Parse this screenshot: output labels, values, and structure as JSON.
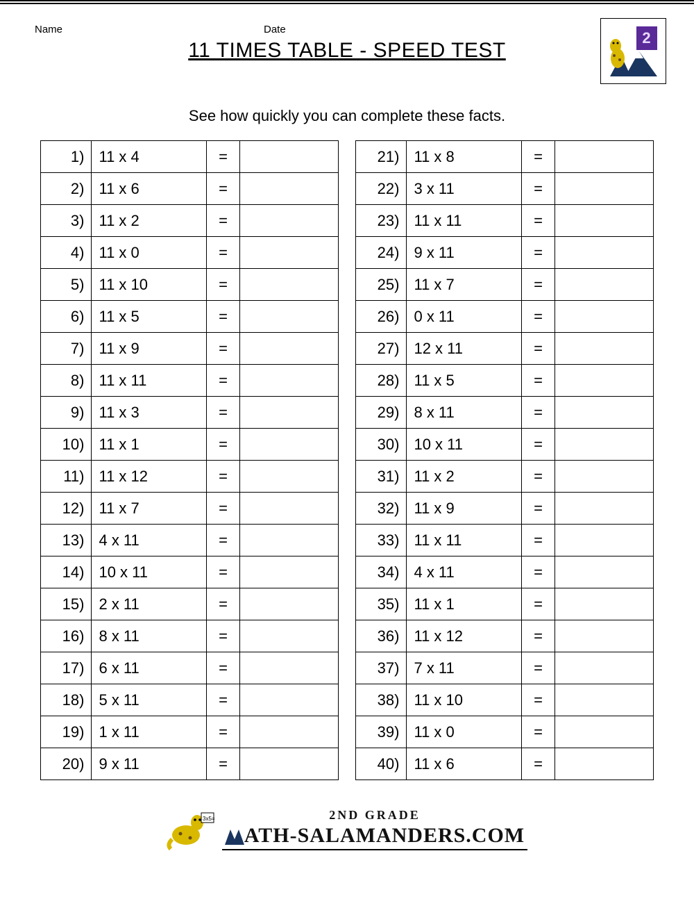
{
  "header": {
    "name_label": "Name",
    "date_label": "Date",
    "title": "11 TIMES TABLE - SPEED TEST",
    "subtitle": "See how quickly you can complete these facts.",
    "logo_number": "2"
  },
  "colors": {
    "border": "#000000",
    "background": "#ffffff",
    "logo_bg": "#5a2a99",
    "logo_text": "#e9d8ff",
    "salamander": "#d8b900"
  },
  "typography": {
    "title_fontsize": 30,
    "subtitle_fontsize": 22,
    "cell_fontsize": 22,
    "label_fontsize": 15
  },
  "equals_sign": "=",
  "left_column": [
    {
      "n": "1)",
      "expr": "11 x 4"
    },
    {
      "n": "2)",
      "expr": "11 x 6"
    },
    {
      "n": "3)",
      "expr": "11 x 2"
    },
    {
      "n": "4)",
      "expr": "11 x 0"
    },
    {
      "n": "5)",
      "expr": "11 x 10"
    },
    {
      "n": "6)",
      "expr": "11 x 5"
    },
    {
      "n": "7)",
      "expr": "11 x 9"
    },
    {
      "n": "8)",
      "expr": "11 x 11"
    },
    {
      "n": "9)",
      "expr": "11 x 3"
    },
    {
      "n": "10)",
      "expr": "11 x 1"
    },
    {
      "n": "11)",
      "expr": "11 x 12"
    },
    {
      "n": "12)",
      "expr": "11 x 7"
    },
    {
      "n": "13)",
      "expr": "4 x 11"
    },
    {
      "n": "14)",
      "expr": "10 x 11"
    },
    {
      "n": "15)",
      "expr": "2 x 11"
    },
    {
      "n": "16)",
      "expr": "8 x 11"
    },
    {
      "n": "17)",
      "expr": "6 x 11"
    },
    {
      "n": "18)",
      "expr": "5 x 11"
    },
    {
      "n": "19)",
      "expr": "1 x 11"
    },
    {
      "n": "20)",
      "expr": "9 x 11"
    }
  ],
  "right_column": [
    {
      "n": "21)",
      "expr": "11 x 8"
    },
    {
      "n": "22)",
      "expr": "3 x 11"
    },
    {
      "n": "23)",
      "expr": "11 x 11"
    },
    {
      "n": "24)",
      "expr": "9 x 11"
    },
    {
      "n": "25)",
      "expr": "11 x 7"
    },
    {
      "n": "26)",
      "expr": "0 x 11"
    },
    {
      "n": "27)",
      "expr": "12 x 11"
    },
    {
      "n": "28)",
      "expr": "11 x 5"
    },
    {
      "n": "29)",
      "expr": "8 x 11"
    },
    {
      "n": "30)",
      "expr": "10 x 11"
    },
    {
      "n": "31)",
      "expr": "11 x 2"
    },
    {
      "n": "32)",
      "expr": "11 x 9"
    },
    {
      "n": "33)",
      "expr": "11 x 11"
    },
    {
      "n": "34)",
      "expr": "4 x 11"
    },
    {
      "n": "35)",
      "expr": "11 x 1"
    },
    {
      "n": "36)",
      "expr": "11 x 12"
    },
    {
      "n": "37)",
      "expr": "7 x 11"
    },
    {
      "n": "38)",
      "expr": "11 x 10"
    },
    {
      "n": "39)",
      "expr": "11 x 0"
    },
    {
      "n": "40)",
      "expr": "11 x 6"
    }
  ],
  "footer": {
    "line1": "2ND GRADE",
    "line2": "ATH-SALAMANDERS.COM"
  }
}
